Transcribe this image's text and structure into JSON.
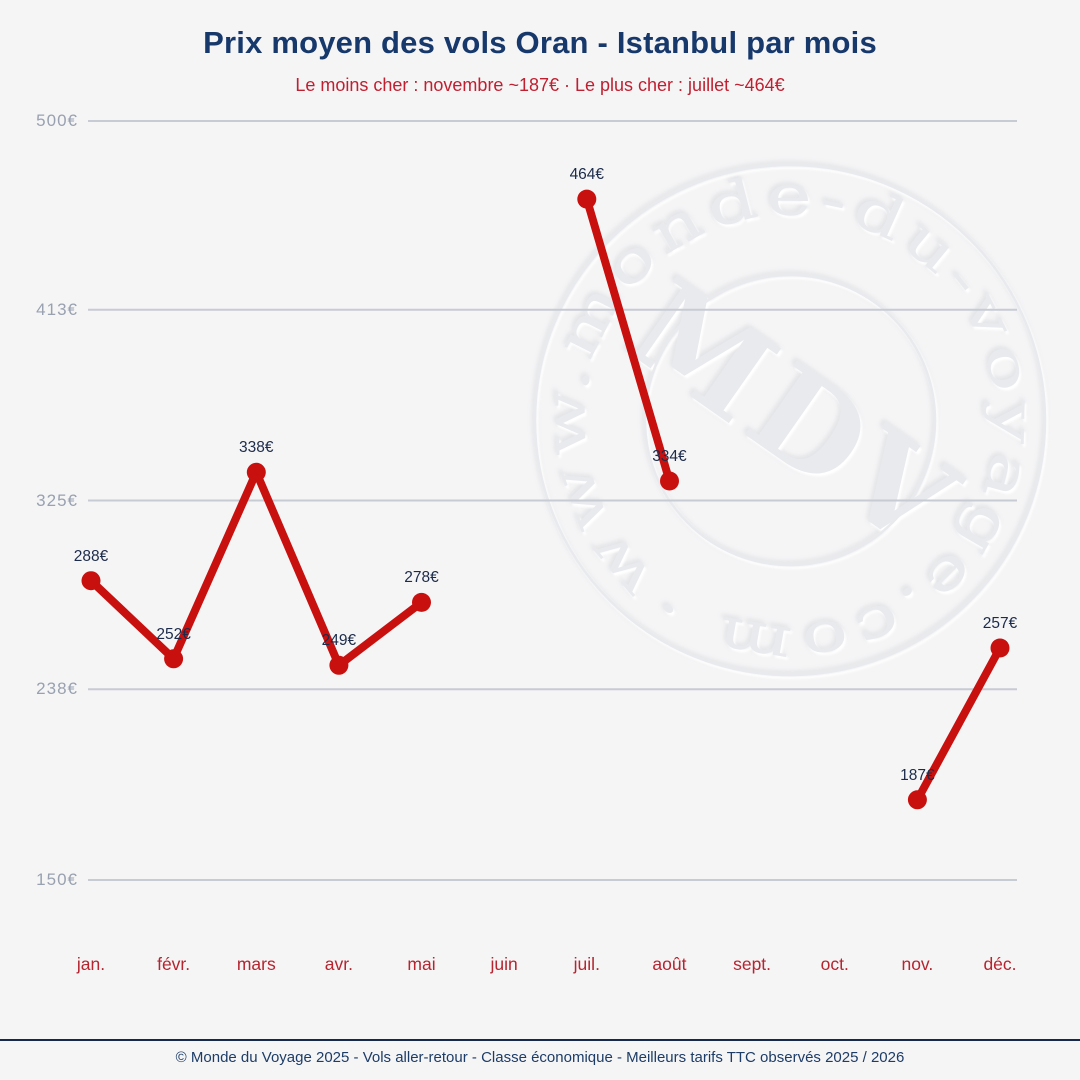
{
  "title": "Prix moyen des vols Oran - Istanbul par mois",
  "subtitle": "Le moins cher : novembre ~187€ · Le plus cher : juillet ~464€",
  "watermark": {
    "ring_text": "www.monde-du-voyage.com · ",
    "center_text": "MDV"
  },
  "footer": {
    "text": "© Monde du Voyage 2025 - Vols aller-retour - Classe économique - Meilleurs tarifs TTC observés 2025 / 2026"
  },
  "colors": {
    "background": "#f5f5f6",
    "title": "#17386b",
    "subtitle": "#c01f2f",
    "line": "#c8100f",
    "grid": "#c7cbd4",
    "ytick": "#99a1b0",
    "xtick": "#b5242f",
    "point_label": "#1c2b4a",
    "footer": "#1d3c66",
    "footer_rule": "#16294b",
    "watermark": "#e9eaee"
  },
  "chart_data": {
    "type": "line",
    "title": "Prix moyen des vols Oran - Istanbul par mois",
    "categories": [
      "jan.",
      "févr.",
      "mars",
      "avr.",
      "mai",
      "juin",
      "juil.",
      "août",
      "sept.",
      "oct.",
      "nov.",
      "déc."
    ],
    "values": [
      288,
      252,
      338,
      249,
      278,
      null,
      464,
      334,
      null,
      null,
      187,
      257
    ],
    "point_labels": [
      "288€",
      "252€",
      "338€",
      "249€",
      "278€",
      null,
      "464€",
      "334€",
      null,
      null,
      "187€",
      "257€"
    ],
    "unit": "€",
    "ylim": [
      150,
      500
    ],
    "ytick_values": [
      500,
      413,
      325,
      238,
      150
    ],
    "ytick_labels": [
      "500€",
      "413€",
      "325€",
      "238€",
      "150€"
    ],
    "grid": true,
    "legend": "none",
    "min": {
      "month": "novembre",
      "value": 187
    },
    "max": {
      "month": "juillet",
      "value": 464
    }
  }
}
